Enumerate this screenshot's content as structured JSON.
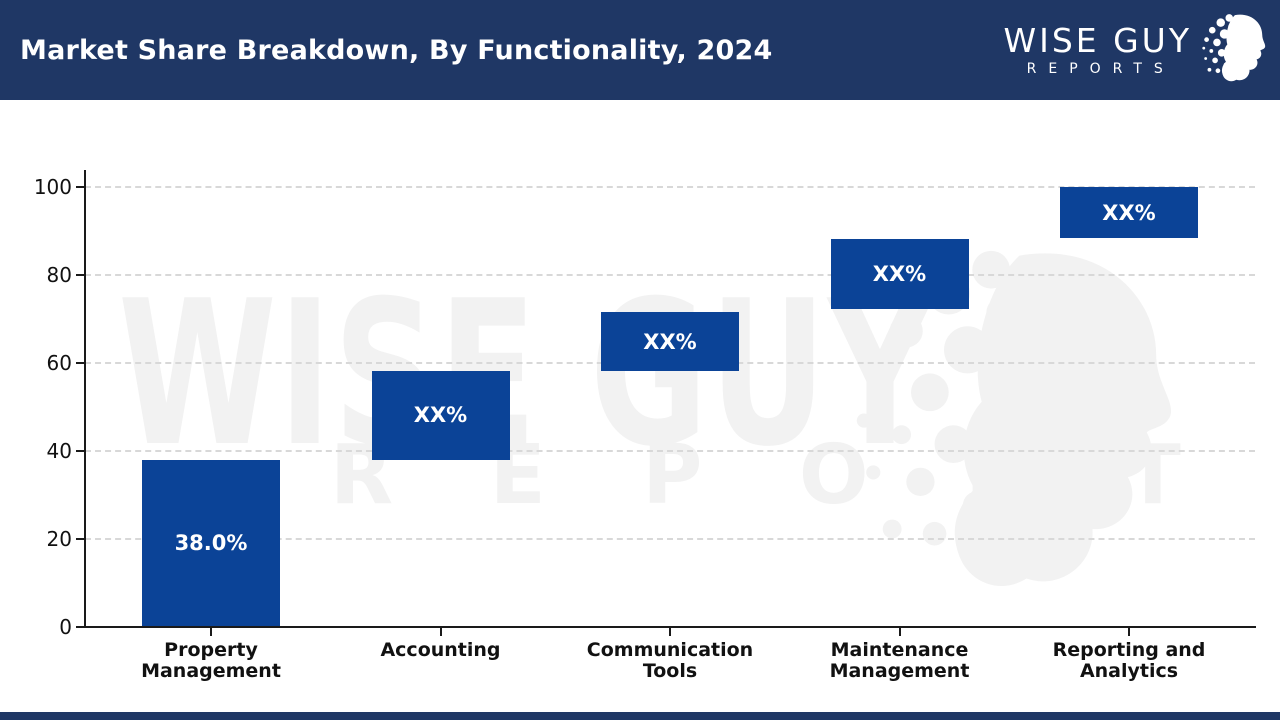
{
  "header": {
    "title": "Market Share Breakdown, By Functionality, 2024",
    "logo": {
      "wordmark": "WISE GUY",
      "subtext": "REPORTS"
    }
  },
  "watermark": {
    "line1": "WISE GUY",
    "line2": "REPORTS"
  },
  "chart_data": {
    "type": "bar",
    "subtype": "waterfall",
    "title": "Market Share Breakdown, By Functionality, 2024",
    "xlabel": "",
    "ylabel": "",
    "ylim": [
      0,
      100
    ],
    "yticks": [
      0,
      20,
      40,
      60,
      80,
      100
    ],
    "grid": "horizontal-dashed",
    "legend": "none",
    "categories": [
      "Property Management",
      "Accounting",
      "Communication Tools",
      "Maintenance Management",
      "Reporting and Analytics"
    ],
    "segments": [
      {
        "category": "Property Management",
        "category_lines": "Property\nManagement",
        "start": 0,
        "end": 38.0,
        "label": "38.0%"
      },
      {
        "category": "Accounting",
        "category_lines": "Accounting",
        "start": 38.0,
        "end": 58.3,
        "label": "XX%"
      },
      {
        "category": "Communication Tools",
        "category_lines": "Communication\nTools",
        "start": 58.2,
        "end": 71.5,
        "label": "XX%"
      },
      {
        "category": "Maintenance Management",
        "category_lines": "Maintenance\nManagement",
        "start": 72.2,
        "end": 88.3,
        "label": "XX%"
      },
      {
        "category": "Reporting and Analytics",
        "category_lines": "Reporting and\nAnalytics",
        "start": 88.3,
        "end": 100.0,
        "label": "XX%"
      }
    ]
  },
  "colors": {
    "header_bg": "#1f3765",
    "footer_bg": "#1f3765",
    "bar": "#0b4397",
    "axis": "#1a1a1a",
    "gridline": "#d8d8d8",
    "watermark": "#f2f2f2",
    "title_text": "#ffffff",
    "bar_label_text": "#ffffff"
  }
}
